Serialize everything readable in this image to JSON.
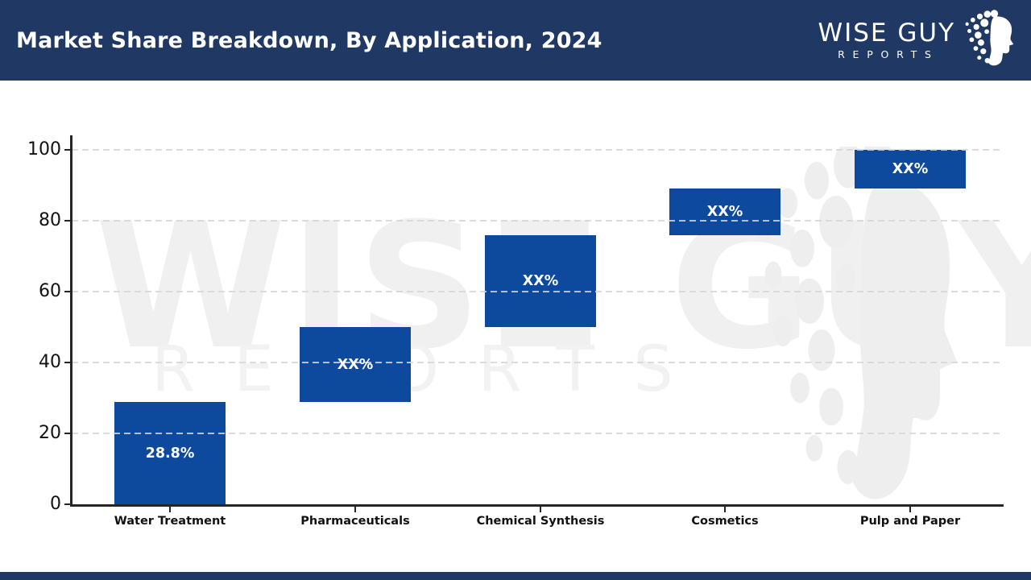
{
  "header": {
    "title": "Market Share Breakdown, By Application, 2024",
    "logo": {
      "wordmark": "WISE GUY",
      "subtext": "REPORTS"
    }
  },
  "watermark": {
    "line1": "WISE GUY",
    "line2": "REPORTS"
  },
  "colors": {
    "brand_navy": "#203864",
    "bar_blue": "#0d4a9e",
    "bar_label_text": "#ffffff",
    "grid": "#d6d6d6",
    "axis": "#262626"
  },
  "chart_data": {
    "type": "bar",
    "variant": "waterfall",
    "title": "Market Share Breakdown, By Application, 2024",
    "xlabel": "",
    "ylabel": "",
    "ylim": [
      0,
      100
    ],
    "yticks": [
      0,
      20,
      40,
      60,
      80,
      100
    ],
    "grid": "horizontal-dashed",
    "legend": "none",
    "categories": [
      "Water Treatment",
      "Pharmaceuticals",
      "Chemical Synthesis",
      "Cosmetics",
      "Pulp and Paper"
    ],
    "segments": [
      {
        "category": "Water Treatment",
        "start": 0,
        "end": 28.8,
        "label": "28.8%"
      },
      {
        "category": "Pharmaceuticals",
        "start": 28.8,
        "end": 50,
        "label": "XX%"
      },
      {
        "category": "Chemical Synthesis",
        "start": 50,
        "end": 76,
        "label": "XX%"
      },
      {
        "category": "Cosmetics",
        "start": 76,
        "end": 89,
        "label": "XX%"
      },
      {
        "category": "Pulp and Paper",
        "start": 89,
        "end": 100,
        "label": "XX%"
      }
    ]
  }
}
